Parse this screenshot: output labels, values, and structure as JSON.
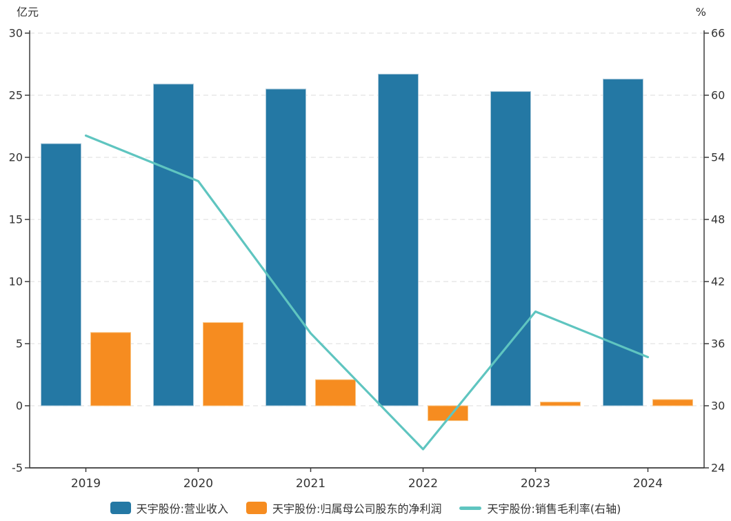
{
  "chart_data": {
    "type": "bar+line",
    "categories": [
      "2019",
      "2020",
      "2021",
      "2022",
      "2023",
      "2024"
    ],
    "series": [
      {
        "name": "天宇股份:营业收入",
        "type": "bar",
        "axis": "left",
        "color": "#2478A4",
        "border_color": "#a9c8da",
        "values": [
          21.1,
          25.9,
          25.5,
          26.7,
          25.3,
          26.3
        ]
      },
      {
        "name": "天宇股份:归属母公司股东的净利润",
        "type": "bar",
        "axis": "left",
        "color": "#F68C20",
        "border_color": "#fac685",
        "values": [
          5.9,
          6.7,
          2.1,
          -1.2,
          0.3,
          0.5
        ]
      },
      {
        "name": "天宇股份:销售毛利率(右轴)",
        "type": "line",
        "axis": "right",
        "color": "#5FC5C0",
        "values": [
          56.1,
          51.7,
          37.0,
          25.8,
          39.1,
          34.7
        ]
      }
    ],
    "left_axis": {
      "unit": "亿元",
      "min": -5,
      "max": 30,
      "ticks": [
        30,
        25,
        20,
        15,
        10,
        5,
        0,
        -5
      ]
    },
    "right_axis": {
      "unit": "%",
      "min": 24,
      "max": 66,
      "ticks": [
        66,
        60,
        54,
        48,
        42,
        36,
        30,
        24
      ]
    },
    "grid": true,
    "legend_position": "bottom",
    "title": ""
  },
  "legend": [
    {
      "label": "天宇股份:营业收入"
    },
    {
      "label": "天宇股份:归属母公司股东的净利润"
    },
    {
      "label": "天宇股份:销售毛利率(右轴)"
    }
  ],
  "colors": {
    "revenue_bar": "#2478A4",
    "net_profit_bar": "#F68C20",
    "gross_margin_line": "#5FC5C0",
    "grid_line": "#e2e2e2",
    "axis_line": "#3a3a3a",
    "tick_text": "#333333"
  }
}
